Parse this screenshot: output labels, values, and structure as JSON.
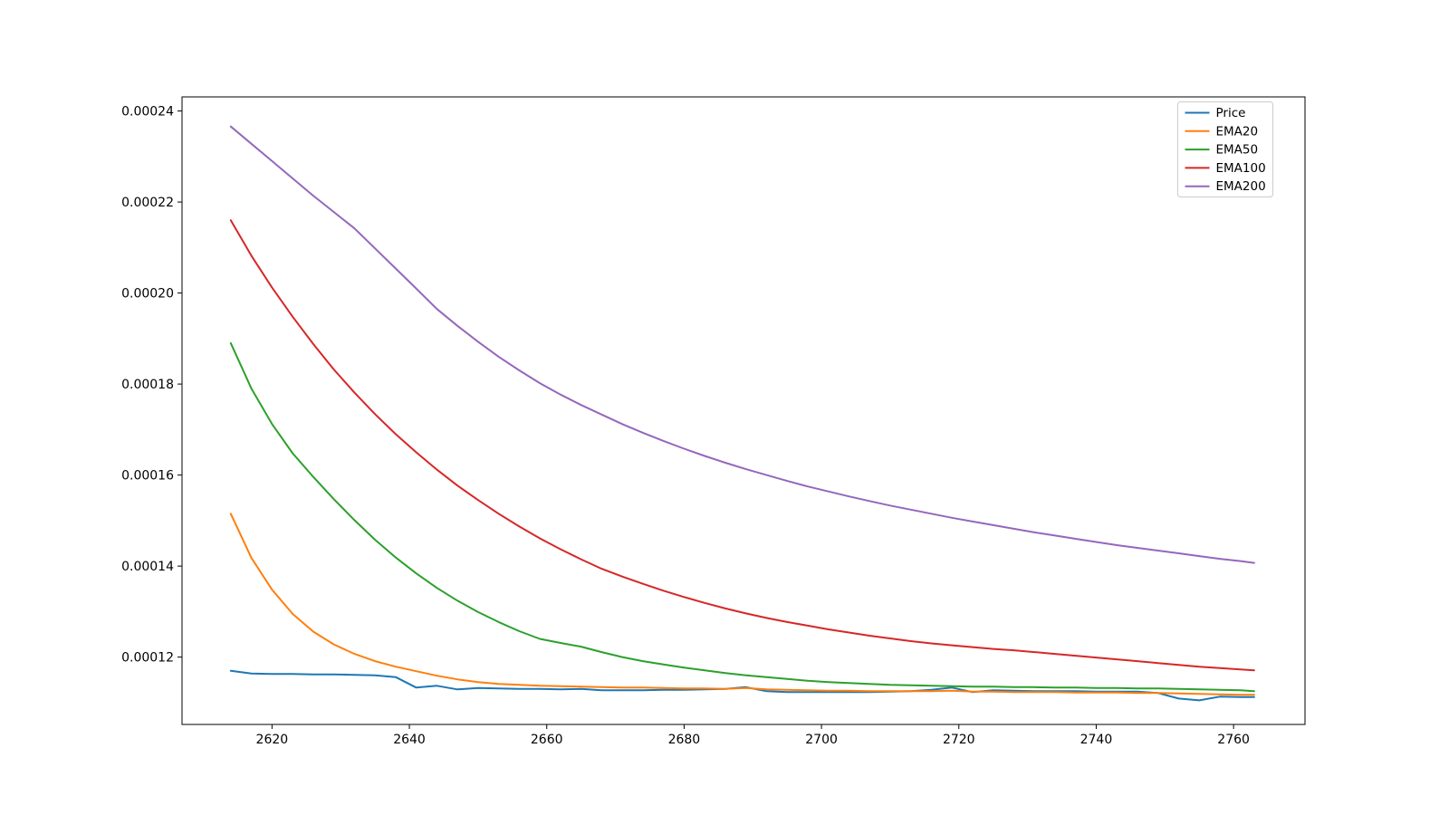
{
  "figure": {
    "background": "#ffffff",
    "axes_edge_color": "#000000",
    "text_color": "#000000"
  },
  "chart_data": {
    "type": "line",
    "title": "",
    "xlabel": "",
    "ylabel": "",
    "grid": false,
    "xlim": [
      2606.9,
      2770.4
    ],
    "ylim": [
      0.0001052,
      0.0002431
    ],
    "x_ticks": [
      2620,
      2640,
      2660,
      2680,
      2700,
      2720,
      2740,
      2760
    ],
    "x_tick_labels": [
      "2620",
      "2640",
      "2660",
      "2680",
      "2700",
      "2720",
      "2740",
      "2760"
    ],
    "y_ticks": [
      0.00012,
      0.00014,
      0.00016,
      0.00018,
      0.0002,
      0.00022,
      0.00024
    ],
    "y_tick_labels": [
      "0.00012",
      "0.00014",
      "0.00016",
      "0.00018",
      "0.00020",
      "0.00022",
      "0.00024"
    ],
    "legend": {
      "position": "upper right",
      "entries": [
        "Price",
        "EMA20",
        "EMA50",
        "EMA100",
        "EMA200"
      ],
      "border_color": "#cccccc",
      "background": "#ffffff"
    },
    "y_value_scale": 1e-06,
    "x": [
      2614,
      2617,
      2620,
      2623,
      2626,
      2629,
      2632,
      2635,
      2638,
      2641,
      2644,
      2647,
      2650,
      2653,
      2656,
      2659,
      2662,
      2665,
      2668,
      2671,
      2674,
      2677,
      2680,
      2683,
      2686,
      2689,
      2692,
      2695,
      2698,
      2701,
      2704,
      2707,
      2710,
      2713,
      2716,
      2719,
      2722,
      2725,
      2728,
      2731,
      2734,
      2737,
      2740,
      2743,
      2746,
      2749,
      2752,
      2755,
      2758,
      2761,
      2763
    ],
    "series": [
      {
        "name": "Price",
        "color": "#1f77b4",
        "values_e6": [
          117.0,
          116.4,
          116.3,
          116.3,
          116.2,
          116.2,
          116.1,
          116.0,
          115.6,
          113.3,
          113.7,
          112.9,
          113.2,
          113.1,
          113.0,
          113.0,
          112.9,
          113.0,
          112.7,
          112.7,
          112.7,
          112.8,
          112.8,
          112.9,
          113.0,
          113.4,
          112.5,
          112.3,
          112.3,
          112.3,
          112.3,
          112.3,
          112.4,
          112.5,
          112.8,
          113.3,
          112.3,
          112.7,
          112.6,
          112.5,
          112.5,
          112.5,
          112.4,
          112.4,
          112.4,
          112.1,
          110.9,
          110.5,
          111.3,
          111.2,
          111.2
        ]
      },
      {
        "name": "EMA20",
        "color": "#ff7f0e",
        "values_e6": [
          151.5,
          141.8,
          134.8,
          129.5,
          125.6,
          122.8,
          120.7,
          119.1,
          117.9,
          116.9,
          115.9,
          115.1,
          114.5,
          114.1,
          113.9,
          113.7,
          113.6,
          113.5,
          113.4,
          113.3,
          113.3,
          113.2,
          113.1,
          113.1,
          113.0,
          113.2,
          112.9,
          112.8,
          112.7,
          112.6,
          112.6,
          112.5,
          112.5,
          112.5,
          112.5,
          112.6,
          112.4,
          112.4,
          112.3,
          112.3,
          112.3,
          112.2,
          112.2,
          112.2,
          112.1,
          112.1,
          112.0,
          111.9,
          111.8,
          111.7,
          111.7
        ]
      },
      {
        "name": "EMA50",
        "color": "#2ca02c",
        "values_e6": [
          189.0,
          179.0,
          171.2,
          164.8,
          159.6,
          154.7,
          150.1,
          145.8,
          141.9,
          138.4,
          135.2,
          132.4,
          129.9,
          127.7,
          125.7,
          124.0,
          123.1,
          122.3,
          121.1,
          120.0,
          119.1,
          118.4,
          117.7,
          117.1,
          116.5,
          116.0,
          115.6,
          115.2,
          114.8,
          114.5,
          114.3,
          114.1,
          113.9,
          113.8,
          113.7,
          113.6,
          113.5,
          113.5,
          113.4,
          113.4,
          113.3,
          113.3,
          113.2,
          113.2,
          113.1,
          113.1,
          113.0,
          112.9,
          112.8,
          112.7,
          112.5
        ]
      },
      {
        "name": "EMA100",
        "color": "#d62728",
        "values_e6": [
          216.0,
          208.2,
          201.2,
          194.8,
          188.8,
          183.2,
          178.1,
          173.4,
          169.0,
          165.0,
          161.2,
          157.7,
          154.5,
          151.5,
          148.7,
          146.1,
          143.7,
          141.5,
          139.4,
          137.7,
          136.1,
          134.6,
          133.2,
          131.9,
          130.7,
          129.6,
          128.6,
          127.7,
          126.9,
          126.1,
          125.4,
          124.7,
          124.1,
          123.5,
          123.0,
          122.6,
          122.2,
          121.8,
          121.5,
          121.1,
          120.7,
          120.3,
          119.9,
          119.5,
          119.1,
          118.7,
          118.3,
          117.9,
          117.6,
          117.3,
          117.1
        ]
      },
      {
        "name": "EMA200",
        "color": "#9467bd",
        "values_e6": [
          236.6,
          232.8,
          229.0,
          225.2,
          221.4,
          217.8,
          214.2,
          209.8,
          205.4,
          201.0,
          196.5,
          192.8,
          189.3,
          186.0,
          183.0,
          180.2,
          177.7,
          175.4,
          173.3,
          171.2,
          169.3,
          167.5,
          165.8,
          164.2,
          162.7,
          161.3,
          160.0,
          158.7,
          157.5,
          156.4,
          155.3,
          154.3,
          153.3,
          152.4,
          151.5,
          150.6,
          149.8,
          149.0,
          148.2,
          147.4,
          146.7,
          146.0,
          145.3,
          144.6,
          144.0,
          143.4,
          142.8,
          142.2,
          141.6,
          141.1,
          140.7
        ]
      }
    ]
  }
}
